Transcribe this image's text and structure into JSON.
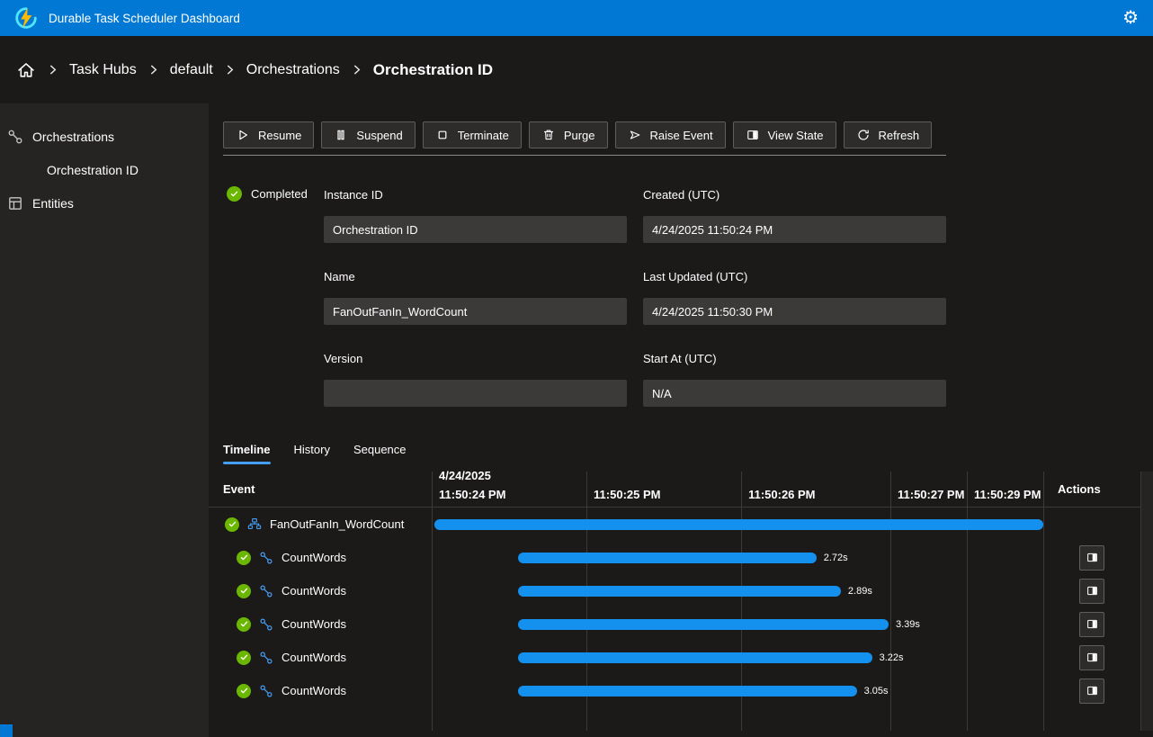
{
  "app": {
    "title": "Durable Task Scheduler Dashboard",
    "accent_color": "#0078d4",
    "settings_glyph": "⚙",
    "icons": {
      "logo": "lightning-bolt",
      "settings": "gear",
      "breadcrumb_home": "home",
      "breadcrumb_separator": "chevron-right"
    }
  },
  "breadcrumb": {
    "items": [
      "Task Hubs",
      "default",
      "Orchestrations"
    ],
    "current": "Orchestration ID"
  },
  "sidebar": {
    "items": [
      {
        "label": "Orchestrations",
        "icon": "flow",
        "level": 0,
        "active": false
      },
      {
        "label": "Orchestration ID",
        "icon": "",
        "level": 1,
        "active": true
      },
      {
        "label": "Entities",
        "icon": "table",
        "level": 0,
        "active": false
      }
    ]
  },
  "toolbar": {
    "buttons": [
      {
        "label": "Resume",
        "icon": "play"
      },
      {
        "label": "Suspend",
        "icon": "pause"
      },
      {
        "label": "Terminate",
        "icon": "stop"
      },
      {
        "label": "Purge",
        "icon": "trash"
      },
      {
        "label": "Raise Event",
        "icon": "send"
      },
      {
        "label": "View State",
        "icon": "panel"
      },
      {
        "label": "Refresh",
        "icon": "refresh"
      }
    ]
  },
  "details": {
    "status": {
      "label": "Completed",
      "color": "#6bb700"
    },
    "fields": [
      {
        "label": "Instance ID",
        "value": "Orchestration ID"
      },
      {
        "label": "Created (UTC)",
        "value": "4/24/2025 11:50:24 PM"
      },
      {
        "label": "Name",
        "value": "FanOutFanIn_WordCount"
      },
      {
        "label": "Last Updated (UTC)",
        "value": "4/24/2025 11:50:30 PM"
      },
      {
        "label": "Version",
        "value": ""
      },
      {
        "label": "Start At (UTC)",
        "value": "N/A"
      }
    ]
  },
  "tabs": {
    "items": [
      {
        "label": "Timeline",
        "active": true
      },
      {
        "label": "History",
        "active": false
      },
      {
        "label": "Sequence",
        "active": false
      }
    ]
  },
  "timeline": {
    "event_header": "Event",
    "actions_header": "Actions",
    "bar_color": "#1490ef",
    "axis_ticks": [
      {
        "date": "4/24/2025",
        "time": "11:50:24 PM",
        "pos_pct": 0
      },
      {
        "date": "",
        "time": "11:50:25 PM",
        "pos_pct": 25.3
      },
      {
        "date": "",
        "time": "11:50:26 PM",
        "pos_pct": 50.6
      },
      {
        "date": "",
        "time": "11:50:27 PM",
        "pos_pct": 75.0
      },
      {
        "date": "",
        "time": "11:50:29 PM",
        "pos_pct": 87.5
      }
    ],
    "rows": [
      {
        "name": "FanOutFanIn_WordCount",
        "type": "orchestration",
        "status": "completed",
        "bar_start_pct": 0.4,
        "bar_width_pct": 99.6,
        "duration": "",
        "has_action": false
      },
      {
        "name": "CountWords",
        "type": "activity",
        "status": "completed",
        "bar_start_pct": 14.1,
        "bar_width_pct": 48.8,
        "duration": "2.72s",
        "has_action": true
      },
      {
        "name": "CountWords",
        "type": "activity",
        "status": "completed",
        "bar_start_pct": 14.1,
        "bar_width_pct": 52.8,
        "duration": "2.89s",
        "has_action": true
      },
      {
        "name": "CountWords",
        "type": "activity",
        "status": "completed",
        "bar_start_pct": 14.1,
        "bar_width_pct": 60.6,
        "duration": "3.39s",
        "has_action": true
      },
      {
        "name": "CountWords",
        "type": "activity",
        "status": "completed",
        "bar_start_pct": 14.1,
        "bar_width_pct": 57.9,
        "duration": "3.22s",
        "has_action": true
      },
      {
        "name": "CountWords",
        "type": "activity",
        "status": "completed",
        "bar_start_pct": 14.1,
        "bar_width_pct": 55.4,
        "duration": "3.05s",
        "has_action": true
      }
    ]
  }
}
